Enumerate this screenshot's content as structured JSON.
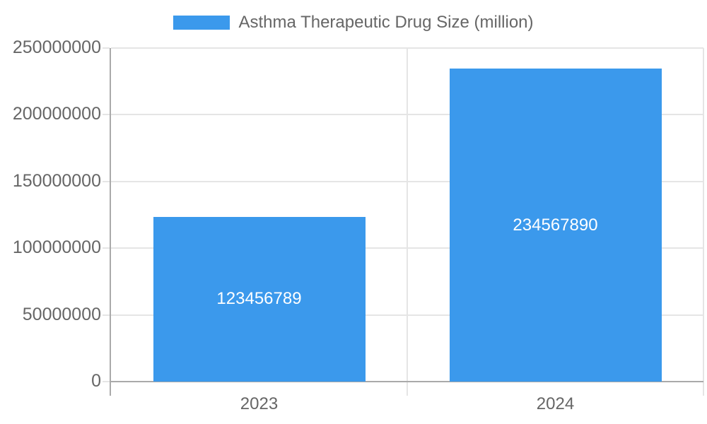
{
  "chart_data": {
    "type": "bar",
    "title": "Asthma Therapeutic Drug Size (million)",
    "legend": {
      "label": "Asthma Therapeutic Drug Size (million)",
      "position": "top"
    },
    "categories": [
      "2023",
      "2024"
    ],
    "series": [
      {
        "name": "Asthma Therapeutic Drug Size (million)",
        "values": [
          123456789,
          234567890
        ]
      }
    ],
    "value_labels": [
      "123456789",
      "234567890"
    ],
    "xlabel": "",
    "ylabel": "",
    "ylim": [
      0,
      250000000
    ],
    "ytick_values": [
      0,
      50000000,
      100000000,
      150000000,
      200000000,
      250000000
    ],
    "ytick_labels": [
      "0",
      "50000000",
      "100000000",
      "150000000",
      "200000000",
      "250000000"
    ],
    "grid": true,
    "colors": {
      "bar": "#3B99EC",
      "gridline": "#E5E5E5",
      "axis": "#AAAAAA",
      "tick_text": "#666666",
      "value_text": "#FFFFFF",
      "background": "#FFFFFF"
    }
  }
}
